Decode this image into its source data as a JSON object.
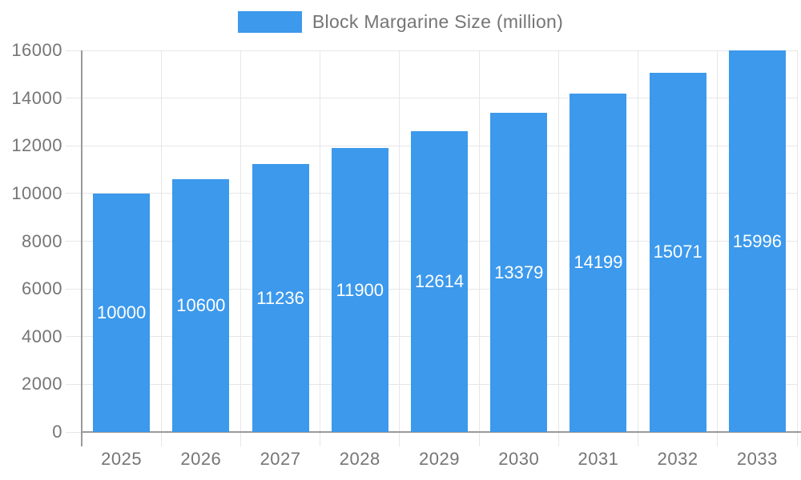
{
  "chart_data": {
    "type": "bar",
    "title": "Block Margarine Size (million)",
    "legend": [
      "Block Margarine Size (million)"
    ],
    "legend_position": "top",
    "categories": [
      "2025",
      "2026",
      "2027",
      "2028",
      "2029",
      "2030",
      "2031",
      "2032",
      "2033"
    ],
    "series": [
      {
        "name": "Block Margarine Size (million)",
        "values": [
          10000,
          10600,
          11236,
          11900,
          12614,
          13379,
          14199,
          15071,
          15996
        ]
      }
    ],
    "bar_value_labels": [
      "10000",
      "10600",
      "11236",
      "11900",
      "12614",
      "13379",
      "14199",
      "15071",
      "15996"
    ],
    "xlabel": "",
    "ylabel": "",
    "ylim": [
      0,
      16000
    ],
    "ytick_step": 2000,
    "yticks": [
      0,
      2000,
      4000,
      6000,
      8000,
      10000,
      12000,
      14000,
      16000
    ],
    "grid": true,
    "colors": {
      "bar": "#3C99EC",
      "grid": "#E6E6E6",
      "axis": "#9A9A9A",
      "axis_text": "#757575",
      "bar_label_text": "#FFFFFF",
      "background": "#FFFFFF"
    }
  }
}
